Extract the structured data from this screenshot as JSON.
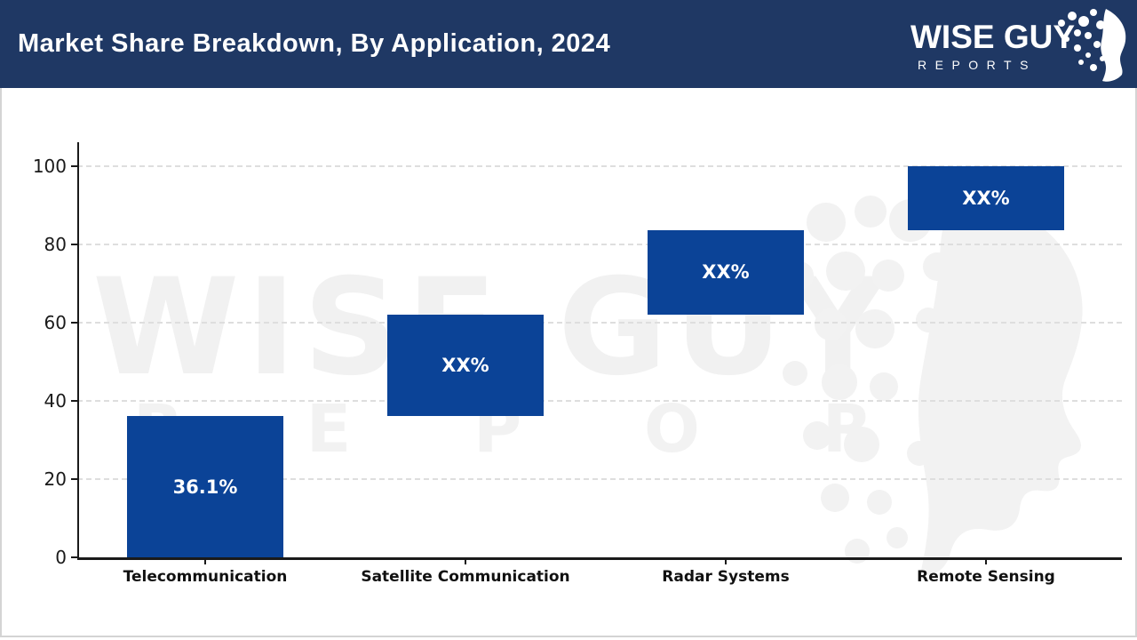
{
  "header": {
    "title": "Market Share Breakdown, By Application, 2024",
    "logo": {
      "line1": "WISE GUY",
      "line2": "R E P O R T S"
    }
  },
  "watermark": {
    "line1": "WISE GUY",
    "line2": "R E P O R T S"
  },
  "chart_data": {
    "type": "bar",
    "subtype": "floating-waterfall-segments",
    "title": "Market Share Breakdown, By Application, 2024",
    "categories": [
      "Telecommunication",
      "Satellite Communication",
      "Radar Systems",
      "Remote Sensing"
    ],
    "bars": [
      {
        "category": "Telecommunication",
        "start": 0,
        "end": 36.1,
        "label": "36.1%"
      },
      {
        "category": "Satellite Communication",
        "start": 36.1,
        "end": 62,
        "label": "XX%"
      },
      {
        "category": "Radar Systems",
        "start": 62,
        "end": 83.7,
        "label": "XX%"
      },
      {
        "category": "Remote Sensing",
        "start": 83.7,
        "end": 100,
        "label": "XX%"
      }
    ],
    "yticks": [
      0,
      20,
      40,
      60,
      80,
      100
    ],
    "ylim": [
      0,
      106
    ],
    "xlabel": "",
    "ylabel": "",
    "grid": "horizontal-dashed",
    "legend": "none"
  },
  "colors": {
    "header_bg": "#1f3864",
    "bar": "#0b4397",
    "bar_label": "#ffffff",
    "grid": "#dedede",
    "axis": "#1a1a1a",
    "watermark": "#f1f1f1",
    "card_border": "#d4d4d4"
  }
}
